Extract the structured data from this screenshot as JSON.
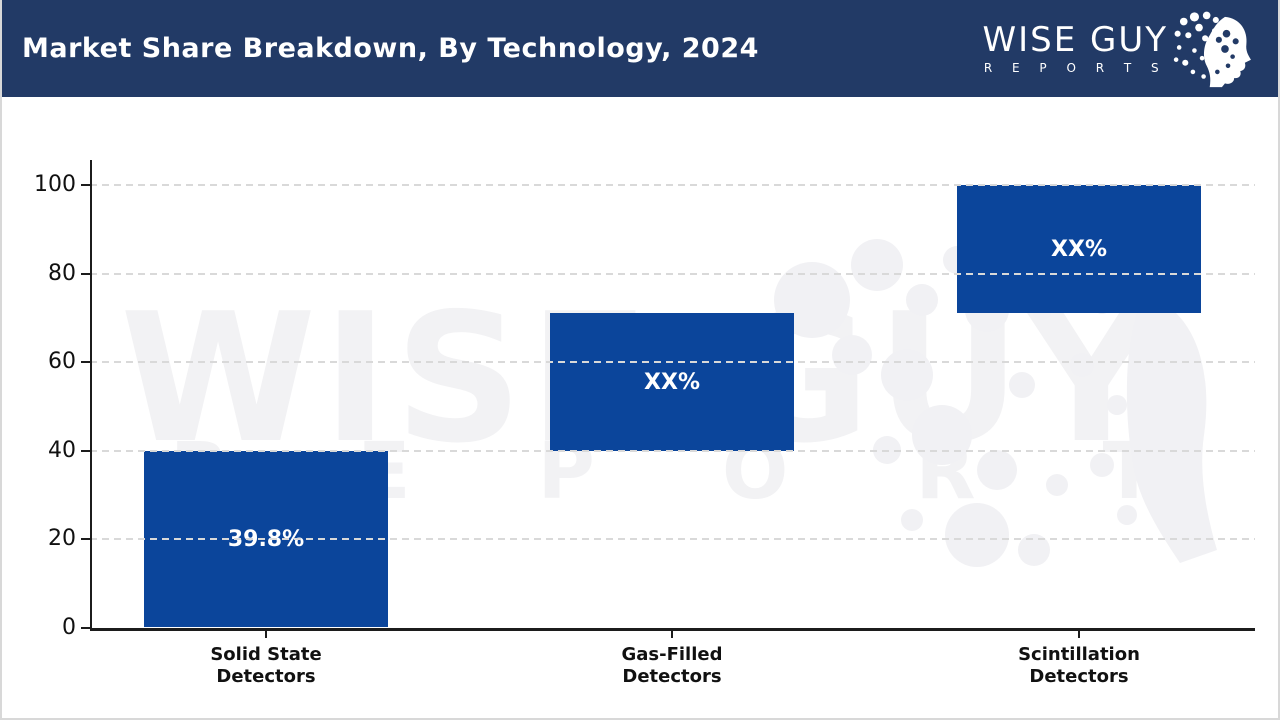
{
  "header": {
    "title": "Market Share Breakdown, By Technology, 2024",
    "logo": {
      "line1": "WISE GUY",
      "line2": "R E P O R T S"
    }
  },
  "watermark": {
    "line1": "WISE GUY",
    "line2": "R E P O R T S"
  },
  "colors": {
    "header_bg": "#223A66",
    "bar": "#0B459B",
    "axis": "#1C1C1C",
    "grid": "#D9D9D9",
    "border": "#D8D8D8",
    "watermark": "#F2F2F4",
    "title_text": "#FFFFFF",
    "bar_label_text": "#FFFFFF"
  },
  "chart_data": {
    "type": "bar",
    "subtype": "waterfall",
    "title": "Market Share Breakdown, By Technology, 2024",
    "categories": [
      {
        "line1": "Solid State",
        "line2": "Detectors"
      },
      {
        "line1": "Gas-Filled",
        "line2": "Detectors"
      },
      {
        "line1": "Scintillation",
        "line2": "Detectors"
      }
    ],
    "segments": [
      {
        "category": "Solid State Detectors",
        "start": 0,
        "end": 39.8,
        "value": 39.8,
        "label": "39.8%"
      },
      {
        "category": "Gas-Filled Detectors",
        "start": 39.8,
        "end": 71,
        "value": 31.2,
        "label": "XX%"
      },
      {
        "category": "Scintillation Detectors",
        "start": 71,
        "end": 100,
        "value": 29,
        "label": "XX%"
      }
    ],
    "yticks": [
      0,
      20,
      40,
      60,
      80,
      100
    ],
    "ylim": [
      0,
      105
    ],
    "xlabel": "",
    "ylabel": "",
    "grid": true,
    "legend": false
  }
}
